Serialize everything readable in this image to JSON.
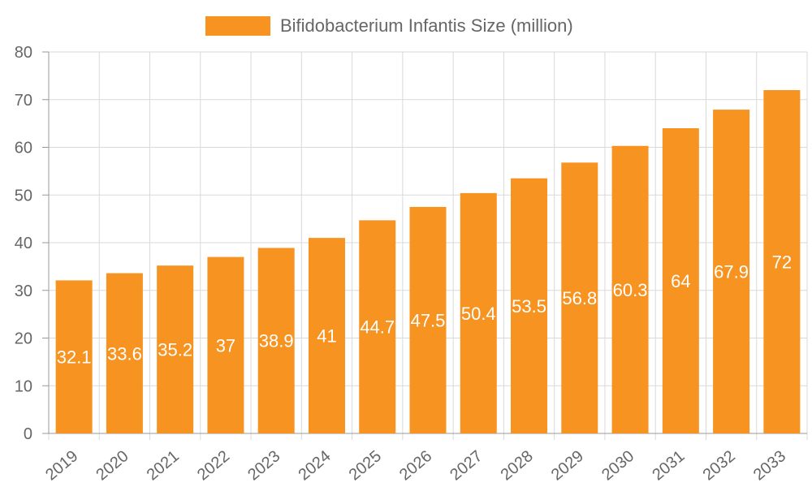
{
  "chart_data": {
    "type": "bar",
    "categories": [
      "2019",
      "2020",
      "2021",
      "2022",
      "2023",
      "2024",
      "2025",
      "2026",
      "2027",
      "2028",
      "2029",
      "2030",
      "2031",
      "2032",
      "2033"
    ],
    "series": [
      {
        "name": "Bifidobacterium Infantis Size (million)",
        "values": [
          32.1,
          33.6,
          35.2,
          37,
          38.9,
          41,
          44.7,
          47.5,
          50.4,
          53.5,
          56.8,
          60.3,
          64,
          67.9,
          72
        ],
        "color": "#f79320"
      }
    ],
    "data_labels": [
      "32.1",
      "33.6",
      "35.2",
      "37",
      "38.9",
      "41",
      "44.7",
      "47.5",
      "50.4",
      "53.5",
      "56.8",
      "60.3",
      "64",
      "67.9",
      "72"
    ],
    "title": "",
    "xlabel": "",
    "ylabel": "",
    "ylim": [
      0,
      80
    ],
    "yticks": [
      0,
      10,
      20,
      30,
      40,
      50,
      60,
      70,
      80
    ],
    "grid": true,
    "legend_position": "top-center"
  }
}
